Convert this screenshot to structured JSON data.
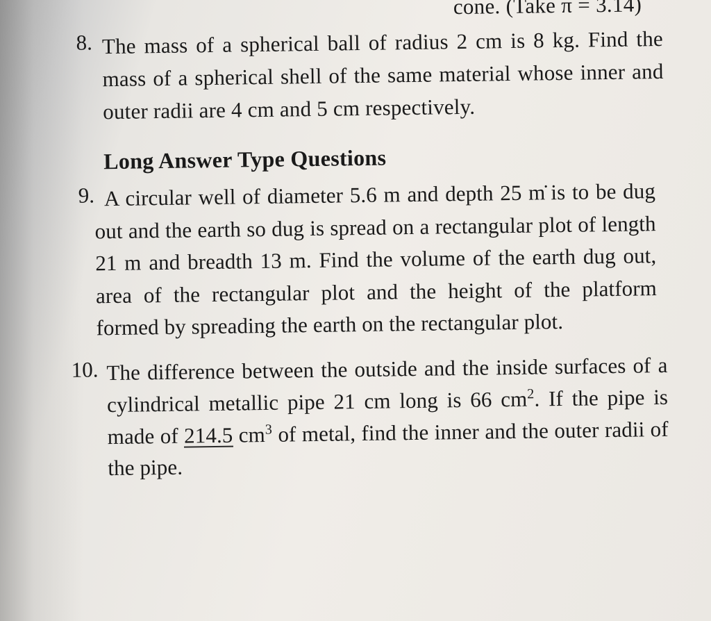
{
  "page": {
    "background_colors": [
      "#b8b8b8",
      "#d0d0d0",
      "#e8e6e2",
      "#f0ede8",
      "#ebe8e3"
    ],
    "text_color": "#1a1a1a",
    "font_family": "Times New Roman",
    "base_fontsize": 31,
    "heading_fontsize": 32,
    "underline_color": "#2a2a2a",
    "underline_width": 2.5
  },
  "fragment_top": "cone. (Take π = 3.14)",
  "questions": [
    {
      "number": "8.",
      "text": "The mass of a spherical ball of radius 2 cm is 8 kg. Find the mass of a spherical shell of the same material whose inner and outer radii are 4 cm and 5 cm respectively."
    }
  ],
  "section_heading": "Long Answer Type Questions",
  "long_questions": [
    {
      "number": "9.",
      "text_prefix": "A circular well of diameter 5.6 m and depth 25 m ",
      "text_hang": "˙is to be dug out and the earth so dug is spread on a rectangular plot of length 21 m and breadth 13 m. Find the volume of the earth dug out, area of the rectangular plot and the height of the platform formed by spreading the earth on the rectangular plot."
    },
    {
      "number": "10.",
      "text_before_underline": "The difference between the outside and the inside surfaces of a cylindrical metallic pipe 21 cm long is 66 cm",
      "text_sup1": "2",
      "text_mid": ". If the pipe is made of ",
      "underline_value": "214.5",
      "text_after_underline": " cm",
      "text_sup2": "3",
      "text_end": " of metal, find the inner and the outer radii of the pipe."
    }
  ]
}
